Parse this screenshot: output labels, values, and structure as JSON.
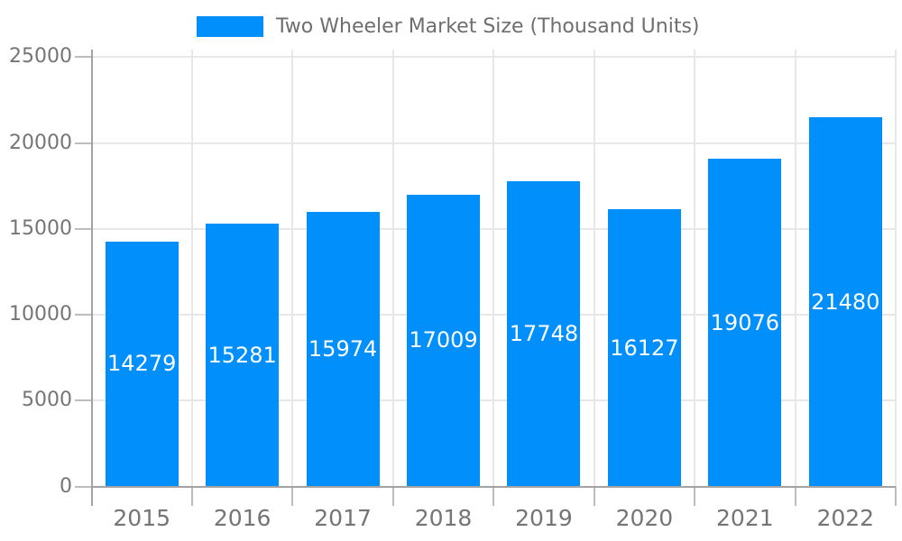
{
  "legend": {
    "label": "Two Wheeler Market Size (Thousand Units)"
  },
  "chart_data": {
    "type": "bar",
    "series_name": "Two Wheeler Market Size (Thousand Units)",
    "categories": [
      "2015",
      "2016",
      "2017",
      "2018",
      "2019",
      "2020",
      "2021",
      "2022"
    ],
    "values": [
      14279,
      15281,
      15974,
      17009,
      17748,
      16127,
      19076,
      21480
    ],
    "value_labels_shown": [
      14279,
      15281,
      15974,
      17009,
      17748,
      16127,
      19076,
      21480
    ],
    "xlabel": "",
    "ylabel": "",
    "ylim": [
      0,
      25000
    ],
    "ytick_interval": 5000,
    "ytick_labels": [
      "0",
      "5000",
      "10000",
      "15000",
      "20000",
      "25000"
    ],
    "grid": "both",
    "legend_position": "top",
    "value_label_position": "inside-center",
    "colors": {
      "bar": "#008FFB",
      "value_label": "#ffffff",
      "axis_text": "#757575",
      "legend_text": "#6e6e6e",
      "axis_line": "#a3a3a3",
      "tick": "#bdbdbd",
      "grid": "#e7e7e7",
      "background": "#ffffff"
    }
  }
}
